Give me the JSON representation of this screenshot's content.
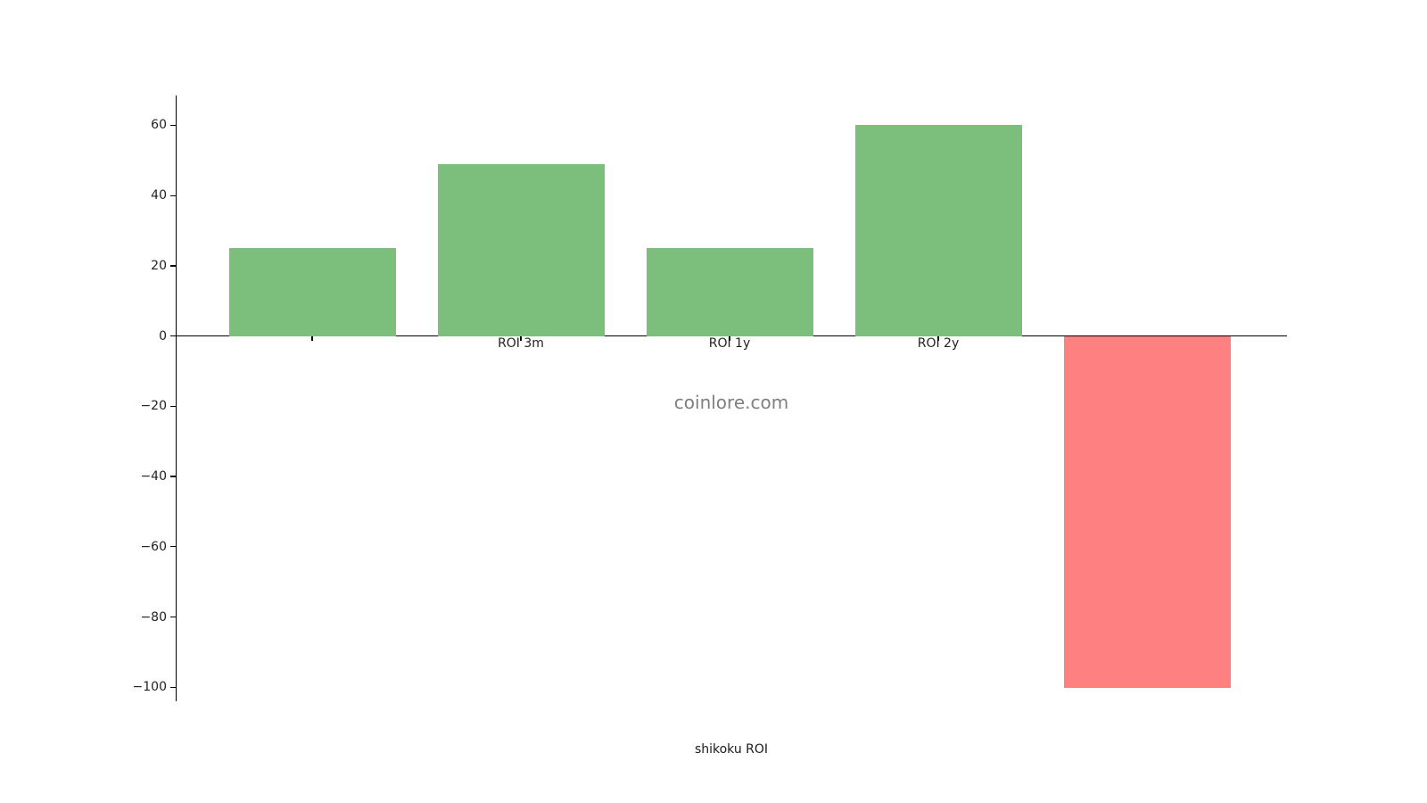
{
  "page": {
    "watermark": "coinlore.com",
    "bottom_title": "shikoku ROI"
  },
  "chart_data": {
    "type": "bar",
    "title": "shikoku ROI",
    "watermark": "coinlore.com",
    "categories": [
      "",
      "ROI 3m",
      "ROI 1y",
      "ROI 2y",
      ""
    ],
    "values": [
      25,
      49,
      25,
      60,
      -100
    ],
    "x_tick_visible": [
      true,
      true,
      true,
      true,
      false
    ],
    "yticks": [
      60,
      40,
      20,
      0,
      -20,
      -40,
      -60,
      -80,
      -100
    ],
    "ylim": [
      -104,
      68.5
    ],
    "xlabel": "shikoku ROI",
    "ylabel": "",
    "grid": false,
    "legend": null,
    "positive_color": "#7cbf7c",
    "negative_color": "#ff8080",
    "axis_color": "#000000",
    "tick_label_color": "#222222",
    "watermark_color": "#7f7f7f"
  }
}
